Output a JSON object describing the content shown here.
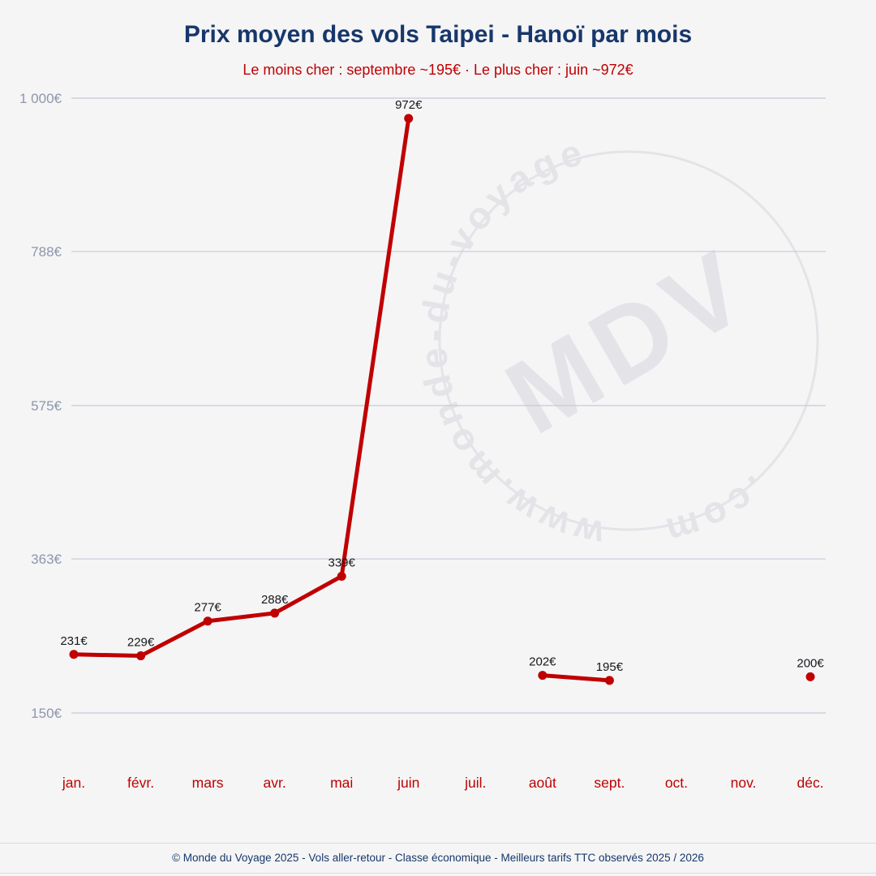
{
  "header": {
    "title": "Prix moyen des vols Taipei - Hanoï par mois",
    "subtitle": "Le moins cher : septembre ~195€ · Le plus cher : juin ~972€"
  },
  "chart_data": {
    "type": "line",
    "title": "Prix moyen des vols Taipei - Hanoï par mois",
    "categories": [
      "jan.",
      "févr.",
      "mars",
      "avr.",
      "mai",
      "juin",
      "juil.",
      "août",
      "sept.",
      "oct.",
      "nov.",
      "déc."
    ],
    "values": [
      231,
      229,
      277,
      288,
      339,
      972,
      null,
      202,
      195,
      null,
      null,
      200
    ],
    "point_labels": [
      "231€",
      "229€",
      "277€",
      "288€",
      "339€",
      "972€",
      null,
      "202€",
      "195€",
      null,
      null,
      "200€"
    ],
    "y_ticks": [
      150,
      363,
      575,
      788,
      1000
    ],
    "y_tick_labels": [
      "150€",
      "363€",
      "575€",
      "788€",
      "1 000€"
    ],
    "ylim": [
      150,
      1000
    ],
    "grid": true,
    "legend": false,
    "xlabel": "",
    "ylabel": ""
  },
  "watermark": {
    "ring_text": "www.monde-du-voyage",
    "ring_text_2": ".com",
    "center_text": "MDV"
  },
  "footer": {
    "text": "© Monde du Voyage 2025 - Vols aller-retour - Classe économique - Meilleurs tarifs TTC observés 2025 / 2026"
  },
  "colors": {
    "title": "#17376b",
    "accent_red": "#c00000",
    "line": "#c00000",
    "grid": "#c5cbd8",
    "axis_label": "#8d96ab",
    "point_label": "#18181c",
    "watermark": "#e4e4e8",
    "footer_text": "#17376b",
    "background": "#f5f5f6"
  }
}
